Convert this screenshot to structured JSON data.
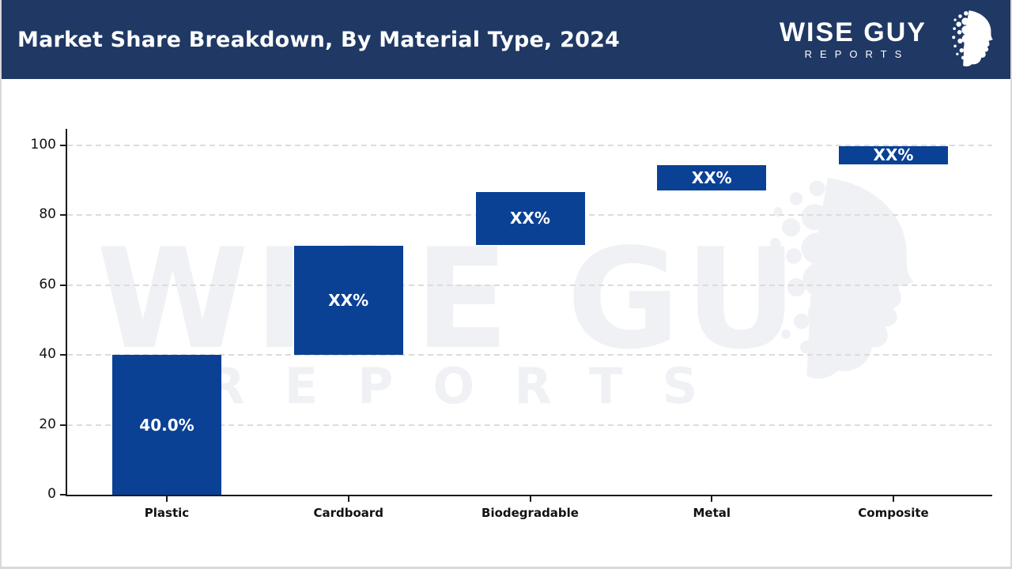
{
  "header": {
    "title": "Market Share Breakdown, By Material Type, 2024",
    "logo_line1": "WISE GUY",
    "logo_line2": "REPORTS"
  },
  "watermark": {
    "line1": "WISE GUY",
    "line2": "REPORTS"
  },
  "colors": {
    "header_bg": "#1f3864",
    "bar": "#0a4195",
    "axis": "#1a1a1a",
    "grid": "#dcdcdc",
    "watermark": "#f0f1f4",
    "bar_label": "#ffffff"
  },
  "chart_data": {
    "type": "bar",
    "variant": "waterfall",
    "title": "Market Share Breakdown, By Material Type, 2024",
    "xlabel": "",
    "ylabel": "",
    "categories": [
      "Plastic",
      "Cardboard",
      "Biodegradable",
      "Metal",
      "Composite"
    ],
    "segments": [
      {
        "category": "Plastic",
        "start": 0,
        "end": 40.0,
        "label": "40.0%"
      },
      {
        "category": "Cardboard",
        "start": 40.0,
        "end": 71.2,
        "label": "XX%"
      },
      {
        "category": "Biodegradable",
        "start": 71.5,
        "end": 86.7,
        "label": "XX%"
      },
      {
        "category": "Metal",
        "start": 87.0,
        "end": 94.4,
        "label": "XX%"
      },
      {
        "category": "Composite",
        "start": 94.6,
        "end": 99.8,
        "label": "XX%"
      }
    ],
    "y_ticks": [
      0,
      20,
      40,
      60,
      80,
      100
    ],
    "ylim": [
      0,
      105
    ],
    "grid": "horizontal-dashed",
    "legend": "none"
  }
}
